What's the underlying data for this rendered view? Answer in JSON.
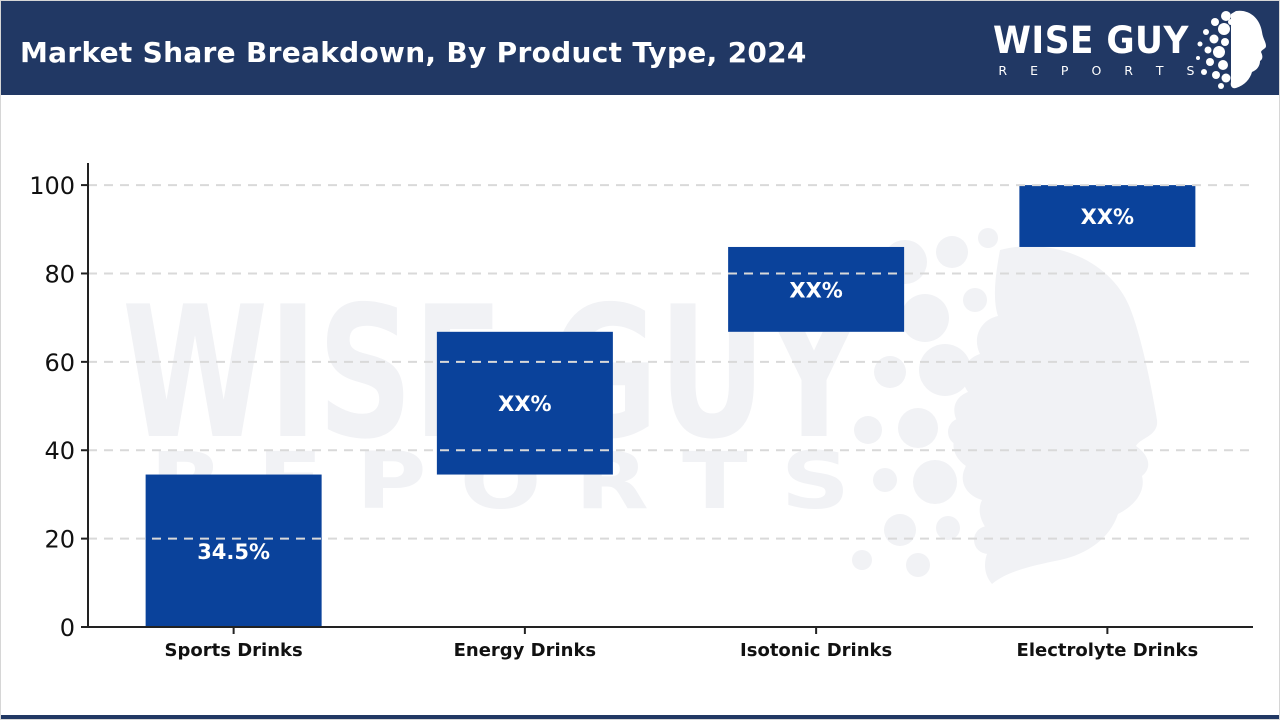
{
  "header": {
    "title": "Market Share Breakdown, By Product Type, 2024",
    "logo": {
      "line1": "WISE GUY",
      "line2": "R E P O R T S"
    }
  },
  "watermark": {
    "line1": "WISE GUY",
    "line2": "R E P O R T S"
  },
  "colors": {
    "header_bg": "#213864",
    "footer_bg": "#213864",
    "bar": "#0a429b",
    "grid": "#d9d9d9",
    "axis": "#222222",
    "tick_text": "#111111",
    "bar_label_text": "#ffffff",
    "watermark": "#f1f2f5",
    "title_text": "#ffffff"
  },
  "chart_data": {
    "type": "bar",
    "subtype": "waterfall",
    "title": "Market Share Breakdown, By Product Type, 2024",
    "categories": [
      "Sports Drinks",
      "Energy Drinks",
      "Isotonic Drinks",
      "Electrolyte Drinks"
    ],
    "segments": [
      {
        "category": "Sports Drinks",
        "start": 0,
        "end": 34.5,
        "label": "34.5%"
      },
      {
        "category": "Energy Drinks",
        "start": 34.5,
        "end": 66.8,
        "label": "XX%"
      },
      {
        "category": "Isotonic Drinks",
        "start": 66.8,
        "end": 86.0,
        "label": "XX%"
      },
      {
        "category": "Electrolyte Drinks",
        "start": 86.0,
        "end": 100.0,
        "label": "XX%"
      }
    ],
    "yticks": [
      0,
      20,
      40,
      60,
      80,
      100
    ],
    "ylim": [
      0,
      105
    ],
    "xlabel": "",
    "ylabel": "",
    "grid": "dashed-horizontal-over-bars",
    "legend": "none"
  }
}
